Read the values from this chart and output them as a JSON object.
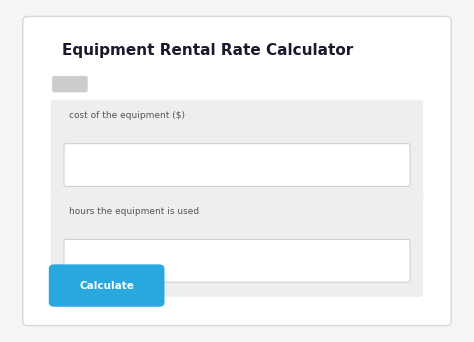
{
  "title": "Equipment Rental Rate Calculator",
  "title_fontsize": 11,
  "title_color": "#1a1a2e",
  "bg_color": "#f5f5f5",
  "outer_panel_bg": "#ffffff",
  "outer_panel_border": "#d8d8d8",
  "inner_panel_bg": "#eeeeee",
  "input_box_bg": "#ffffff",
  "input_box_border": "#cccccc",
  "label1": "cost of the equipment ($)",
  "label2": "hours the equipment is used",
  "label_color": "#555555",
  "label_fontsize": 6.5,
  "button_text": "Calculate",
  "button_color": "#29a8e0",
  "button_text_color": "#ffffff",
  "button_fontsize": 7.5,
  "tab_color": "#cccccc",
  "fig_w": 4.74,
  "fig_h": 3.42,
  "dpi": 100
}
